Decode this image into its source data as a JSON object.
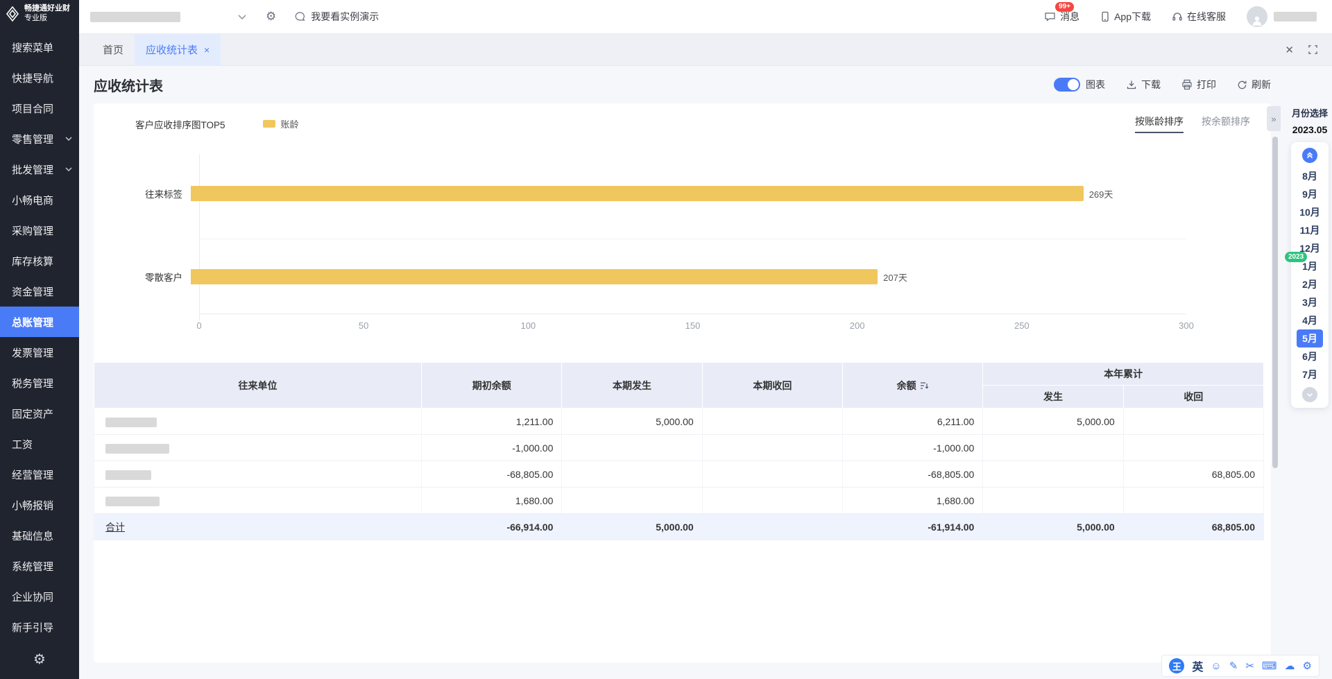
{
  "brand": {
    "line1": "畅捷通好业财",
    "line2": "专业版"
  },
  "sidebar": {
    "items": [
      {
        "label": "搜索菜单"
      },
      {
        "label": "快捷导航"
      },
      {
        "label": "项目合同"
      },
      {
        "label": "零售管理",
        "has_arrow": true
      },
      {
        "label": "批发管理",
        "has_arrow": true
      },
      {
        "label": "小畅电商"
      },
      {
        "label": "采购管理"
      },
      {
        "label": "库存核算"
      },
      {
        "label": "资金管理"
      },
      {
        "label": "总账管理",
        "active": true
      },
      {
        "label": "发票管理"
      },
      {
        "label": "税务管理"
      },
      {
        "label": "固定资产"
      },
      {
        "label": "工资"
      },
      {
        "label": "经营管理"
      },
      {
        "label": "小畅报销"
      },
      {
        "label": "基础信息"
      },
      {
        "label": "系统管理"
      },
      {
        "label": "企业协同"
      },
      {
        "label": "新手引导"
      }
    ]
  },
  "topbar": {
    "demo": "我要看实例演示",
    "messages": "消息",
    "badge": "99+",
    "app_download": "App下载",
    "support": "在线客服"
  },
  "tabs": {
    "home": "首页",
    "active": "应收统计表"
  },
  "page": {
    "title": "应收统计表",
    "toggle_label": "图表",
    "download": "下载",
    "print": "打印",
    "refresh": "刷新"
  },
  "chart": {
    "legend_title": "客户应收排序图TOP5",
    "series_name": "账龄",
    "sort_age": "按账龄排序",
    "sort_balance": "按余额排序"
  },
  "chart_data": {
    "type": "bar",
    "orientation": "horizontal",
    "title": "客户应收排序图TOP5",
    "categories": [
      "往来标签",
      "零散客户"
    ],
    "series": [
      {
        "name": "账龄",
        "values": [
          269,
          207
        ],
        "unit": "天"
      }
    ],
    "value_labels": [
      "269天",
      "207天"
    ],
    "xlim": [
      0,
      300
    ],
    "xticks": [
      "0",
      "50",
      "100",
      "150",
      "200",
      "250",
      "300"
    ],
    "bar_color": "#f0c65f",
    "grid": "minimal",
    "legend_position": "top-left",
    "sort_options": [
      "按账龄排序",
      "按余额排序"
    ],
    "active_sort": "按账龄排序"
  },
  "table": {
    "col_unit": "往来单位",
    "col_opening": "期初余额",
    "col_current": "本期发生",
    "col_received": "本期收回",
    "col_balance": "余额",
    "col_ytd": "本年累计",
    "col_ytd_occur": "发生",
    "col_ytd_recv": "收回",
    "rows": [
      {
        "name_redacted": true,
        "cells": [
          "1,211.00",
          "5,000.00",
          "",
          "6,211.00",
          "5,000.00",
          ""
        ]
      },
      {
        "name_redacted": true,
        "cells": [
          "-1,000.00",
          "",
          "",
          "-1,000.00",
          "",
          ""
        ]
      },
      {
        "name_redacted": true,
        "cells": [
          "-68,805.00",
          "",
          "",
          "-68,805.00",
          "",
          "68,805.00"
        ]
      },
      {
        "name_redacted": true,
        "cells": [
          "1,680.00",
          "",
          "",
          "1,680.00",
          "",
          ""
        ]
      }
    ],
    "total": {
      "label": "合计",
      "cells": [
        "-66,914.00",
        "5,000.00",
        "",
        "-61,914.00",
        "5,000.00",
        "68,805.00"
      ]
    }
  },
  "month_panel": {
    "title": "月份选择",
    "current": "2023.05",
    "year_badge": "2023",
    "months": [
      "8月",
      "9月",
      "10月",
      "11月",
      "12月",
      "1月",
      "2月",
      "3月",
      "4月",
      "5月",
      "6月",
      "7月"
    ],
    "active_month": "5月"
  },
  "ime": {
    "logo": "王",
    "lang": "英"
  }
}
